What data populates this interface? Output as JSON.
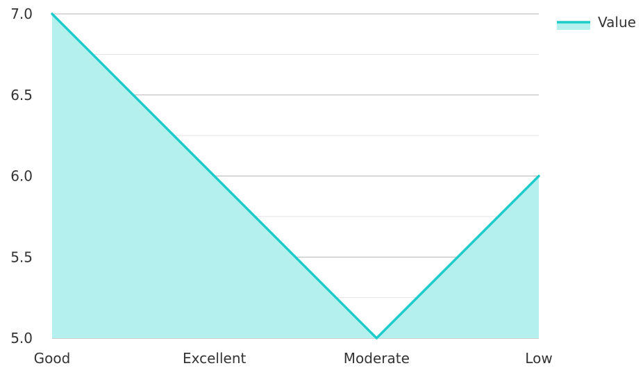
{
  "chart_data": {
    "type": "area",
    "categories": [
      "Good",
      "Excellent",
      "Moderate",
      "Low"
    ],
    "series": [
      {
        "name": "Value",
        "values": [
          7.0,
          6.0,
          5.0,
          6.0
        ]
      }
    ],
    "title": "",
    "xlabel": "",
    "ylabel": "",
    "ylim": [
      5.0,
      7.0
    ],
    "yticks": [
      "5.0",
      "5.5",
      "6.0",
      "6.5",
      "7.0"
    ],
    "grid": true,
    "legend": "top-right",
    "colors": {
      "line": "#1ecbcb",
      "fill": "#b3f0ee",
      "grid_major": "#b4b4b4",
      "grid_minor": "#e3e3e3",
      "axis": "#999999"
    }
  }
}
